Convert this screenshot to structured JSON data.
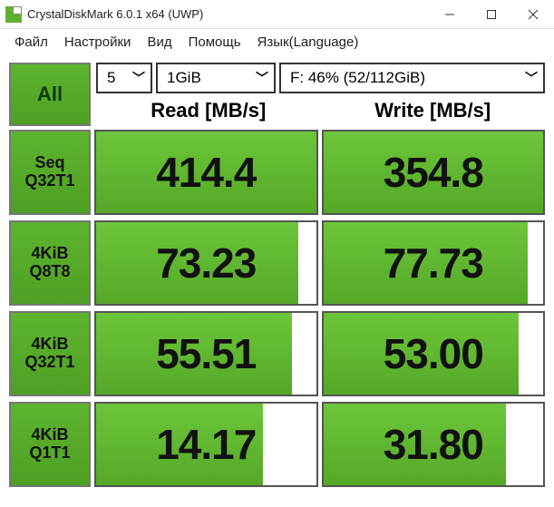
{
  "window": {
    "title": "CrystalDiskMark 6.0.1 x64 (UWP)"
  },
  "menu": {
    "file": "Файл",
    "settings": "Настройки",
    "view": "Вид",
    "help": "Помощь",
    "language": "Язык(Language)"
  },
  "controls": {
    "all_label": "All",
    "count_selected": "5",
    "size_selected": "1GiB",
    "drive_selected": "F: 46% (52/112GiB)"
  },
  "headers": {
    "read": "Read [MB/s]",
    "write": "Write [MB/s]"
  },
  "colors": {
    "button_gradient_top": "#5db52e",
    "button_gradient_bottom": "#4ea024",
    "fill_gradient_top": "#6cc63a",
    "fill_gradient_bottom": "#55a828",
    "border": "#555555",
    "text": "#111111"
  },
  "rows": [
    {
      "label1": "Seq",
      "label2": "Q32T1",
      "read": "414.4",
      "read_pct": 100,
      "write": "354.8",
      "write_pct": 100
    },
    {
      "label1": "4KiB",
      "label2": "Q8T8",
      "read": "73.23",
      "read_pct": 92,
      "write": "77.73",
      "write_pct": 93
    },
    {
      "label1": "4KiB",
      "label2": "Q32T1",
      "read": "55.51",
      "read_pct": 89,
      "write": "53.00",
      "write_pct": 89
    },
    {
      "label1": "4KiB",
      "label2": "Q1T1",
      "read": "14.17",
      "read_pct": 76,
      "write": "31.80",
      "write_pct": 83
    }
  ]
}
